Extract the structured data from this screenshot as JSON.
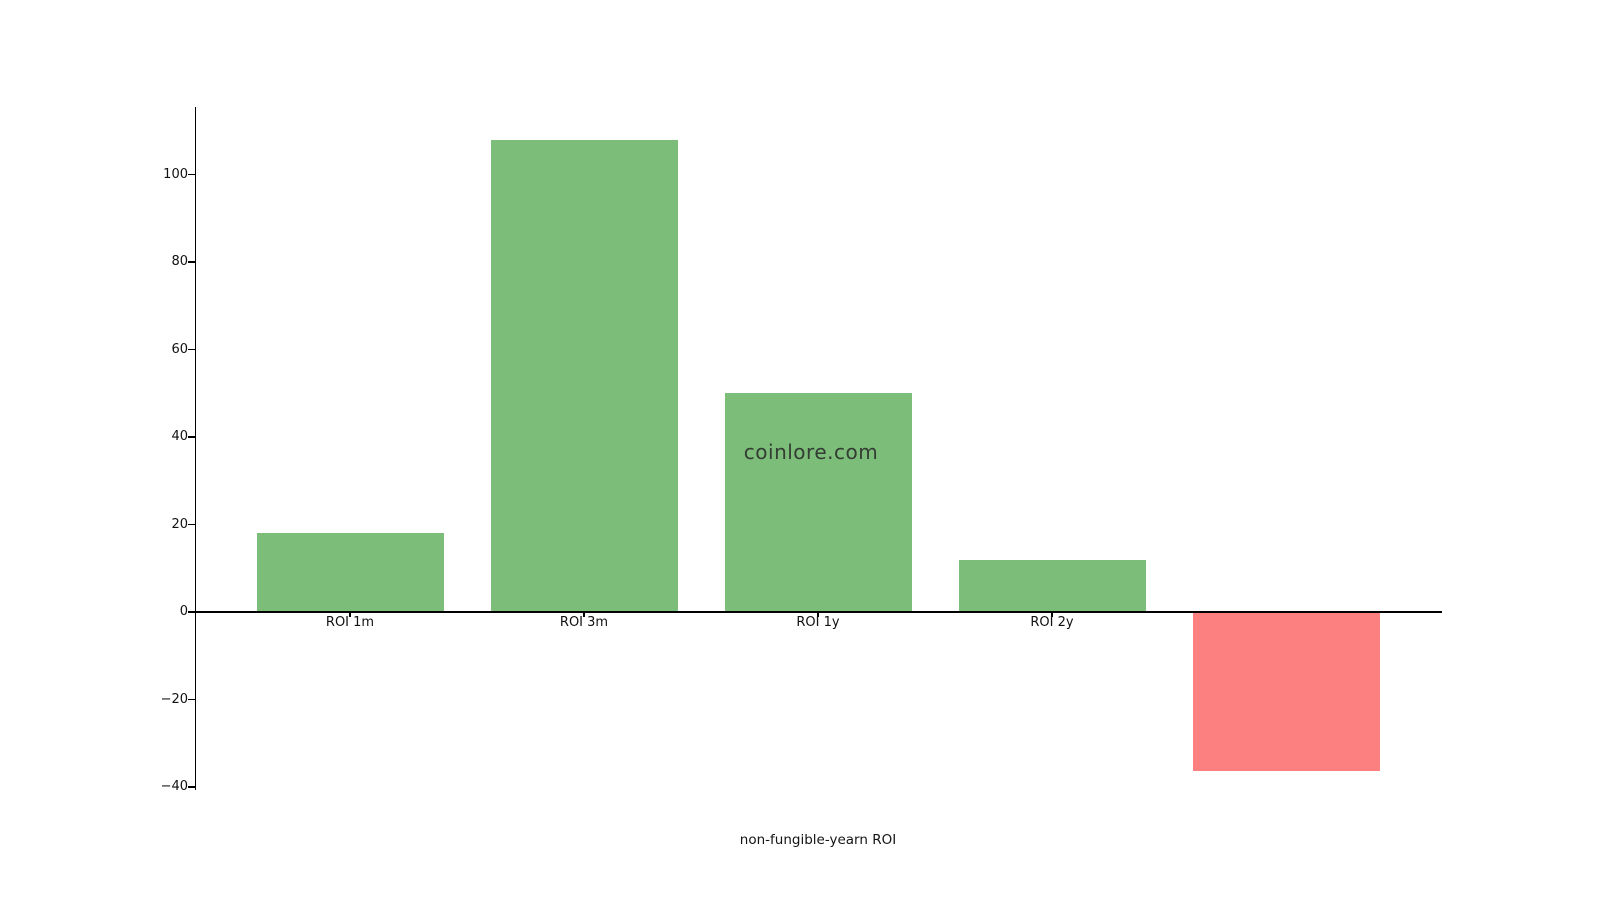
{
  "page": {
    "background_color": "#ffffff"
  },
  "watermark": {
    "text": "coinlore.com",
    "color": "#2d322d"
  },
  "chart_data": {
    "type": "bar",
    "title": "",
    "xlabel": "non-fungible-yearn ROI",
    "ylabel": "",
    "categories": [
      "ROI 1m",
      "ROI 3m",
      "ROI 1y",
      "ROI 2y",
      ""
    ],
    "values": [
      18,
      108,
      50,
      12,
      -36
    ],
    "bar_colors": [
      "#7dbd7a",
      "#7dbd7a",
      "#7dbd7a",
      "#7dbd7a",
      "#fd8080"
    ],
    "positive_color": "#7dbd7a",
    "negative_color": "#fd8080",
    "yticks": [
      100,
      80,
      60,
      40,
      20,
      0,
      -20,
      -40
    ],
    "ytick_labels": [
      "100",
      "80",
      "60",
      "40",
      "20",
      "0",
      "−20",
      "−40"
    ],
    "ylim": [
      -40.7,
      115.5
    ],
    "grid": false,
    "legend": null,
    "axis_color": "#000000",
    "baseline": 0
  }
}
